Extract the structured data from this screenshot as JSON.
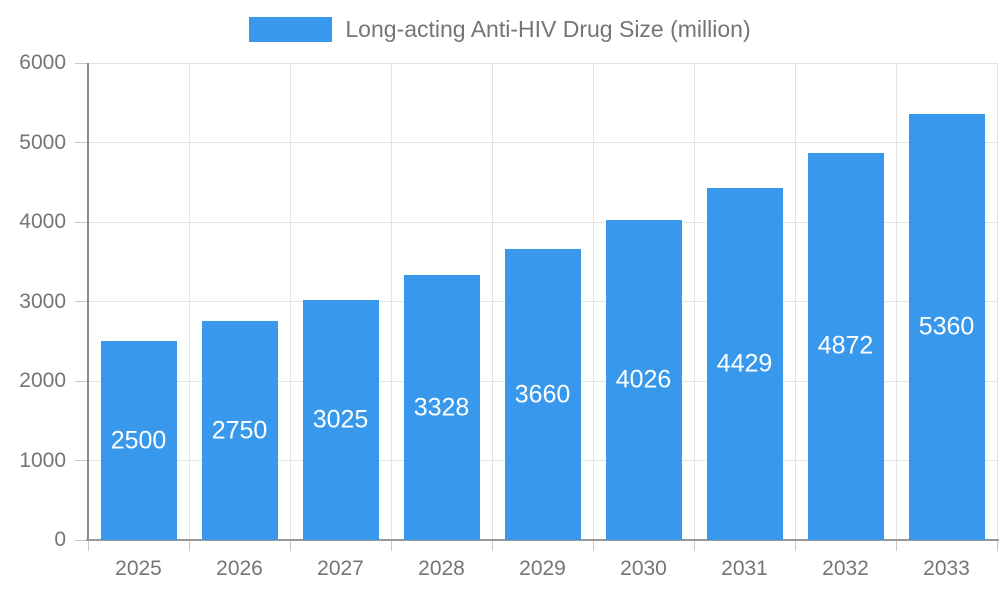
{
  "legend": {
    "label": "Long-acting Anti-HIV Drug Size (million)"
  },
  "chart_data": {
    "type": "bar",
    "title": "Long-acting Anti-HIV Drug Size (million)",
    "categories": [
      "2025",
      "2026",
      "2027",
      "2028",
      "2029",
      "2030",
      "2031",
      "2032",
      "2033"
    ],
    "values": [
      2500,
      2750,
      3025,
      3328,
      3660,
      4026,
      4429,
      4872,
      5360
    ],
    "xlabel": "",
    "ylabel": "",
    "ylim": [
      0,
      6000
    ],
    "ytick_step": 1000,
    "ytick_labels": [
      "0",
      "1000",
      "2000",
      "3000",
      "4000",
      "5000",
      "6000"
    ],
    "grid": true,
    "legend_position": "top-center",
    "bar_color": "#3898EC",
    "axis_label_color": "#757575",
    "bar_label_color": "#ffffff"
  }
}
